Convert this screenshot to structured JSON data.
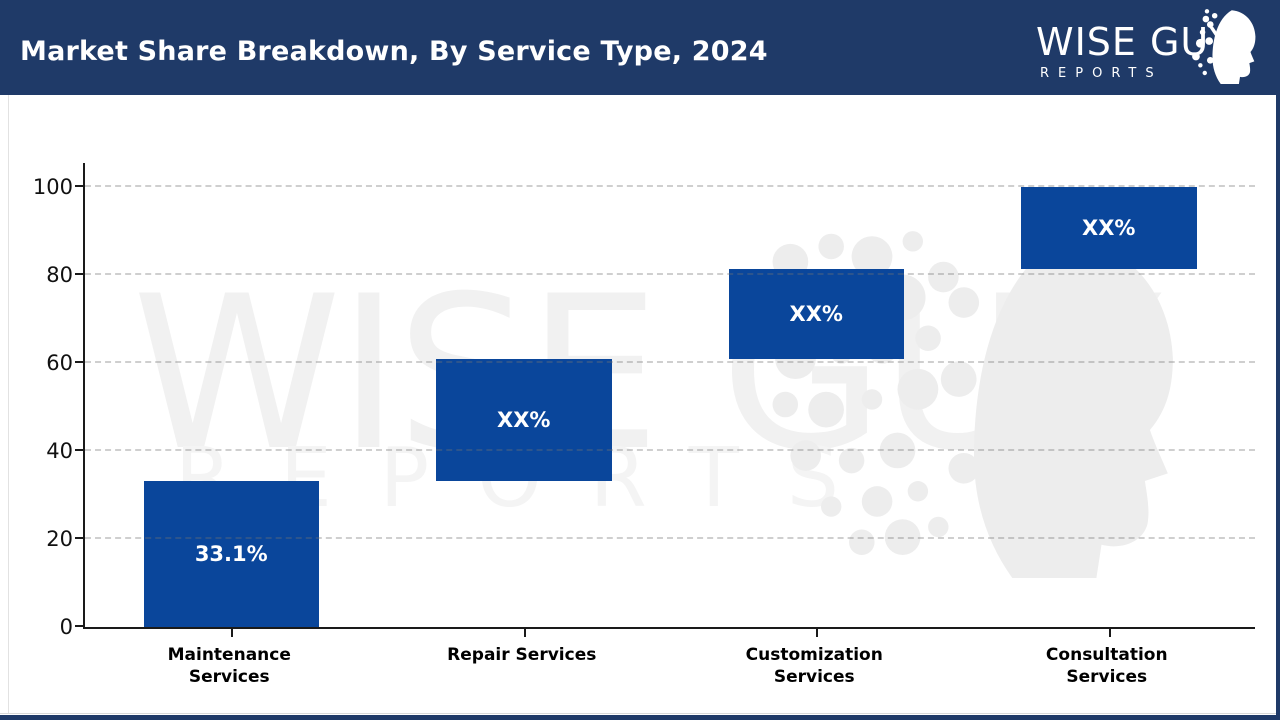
{
  "header": {
    "title": "Market Share Breakdown, By Service Type, 2024",
    "logo_line1": "WISE GUY",
    "logo_line2": "REPORTS"
  },
  "watermark": {
    "line1": "WISE GUY",
    "line2": "REPORTS"
  },
  "colors": {
    "header_bg": "#1f3a68",
    "bar": "#0a469b",
    "axis": "#1a1a1a",
    "grid_dash": "#c9c9c9",
    "bar_label_text": "#ffffff",
    "watermark_gray": "#f1f1f1"
  },
  "chart_data": {
    "type": "bar",
    "subtype": "floating-waterfall",
    "title": "Market Share Breakdown, By Service Type, 2024",
    "categories": [
      [
        "Maintenance",
        "Services"
      ],
      [
        "Repair Services"
      ],
      [
        "Customization",
        "Services"
      ],
      [
        "Consultation",
        "Services"
      ]
    ],
    "segments": [
      {
        "category": "Maintenance Services",
        "start": 0,
        "end": 33.1,
        "value": 33.1,
        "label": "33.1%"
      },
      {
        "category": "Repair Services",
        "start": 33.1,
        "end": 61.0,
        "value": 27.9,
        "label": "XX%"
      },
      {
        "category": "Customization Services",
        "start": 61.0,
        "end": 81.3,
        "value": 20.3,
        "label": "XX%"
      },
      {
        "category": "Consultation Services",
        "start": 81.3,
        "end": 100,
        "value": 18.7,
        "label": "XX%"
      }
    ],
    "yticks": [
      0,
      20,
      40,
      60,
      80,
      100
    ],
    "ylim": [
      0,
      105.5
    ],
    "bar_width_fraction": 0.6,
    "grid": {
      "horizontal": true,
      "style": "dashed"
    },
    "legend": null
  }
}
